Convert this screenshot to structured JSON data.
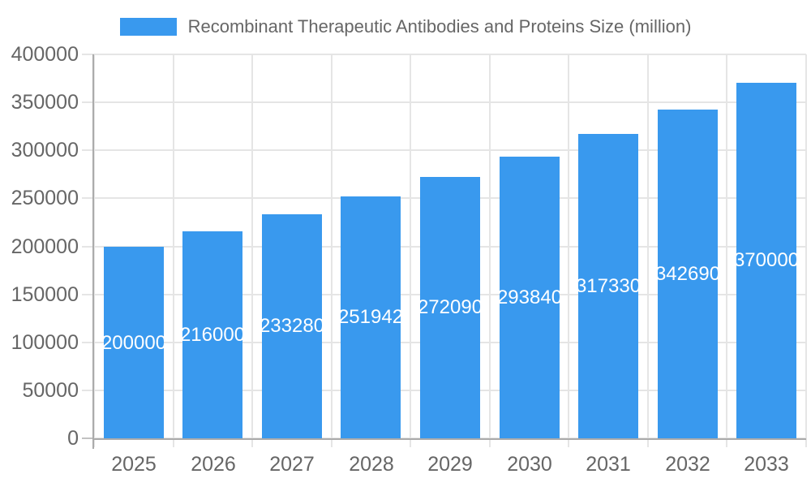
{
  "legend": {
    "label": "Recombinant Therapeutic Antibodies and Proteins Size (million)"
  },
  "colors": {
    "bar": "#3999EE",
    "grid": "#E5E5E5",
    "axis": "#ABABAB",
    "tick_text": "#666666",
    "bar_label_text": "#FFFFFF",
    "background": "#FFFFFF"
  },
  "chart_data": {
    "type": "bar",
    "title": "Recombinant Therapeutic Antibodies and Proteins Size (million)",
    "categories": [
      "2025",
      "2026",
      "2027",
      "2028",
      "2029",
      "2030",
      "2031",
      "2032",
      "2033"
    ],
    "series": [
      {
        "name": "Recombinant Therapeutic Antibodies and Proteins Size (million)",
        "values": [
          200000,
          216000,
          233280,
          251942,
          272090,
          293840,
          317330,
          342690,
          370000
        ]
      }
    ],
    "xlabel": "",
    "ylabel": "",
    "ylim": [
      0,
      400000
    ],
    "y_ticks": [
      0,
      50000,
      100000,
      150000,
      200000,
      250000,
      300000,
      350000,
      400000
    ],
    "grid": true,
    "legend_position": "top",
    "value_labels_inside_bars": true
  }
}
